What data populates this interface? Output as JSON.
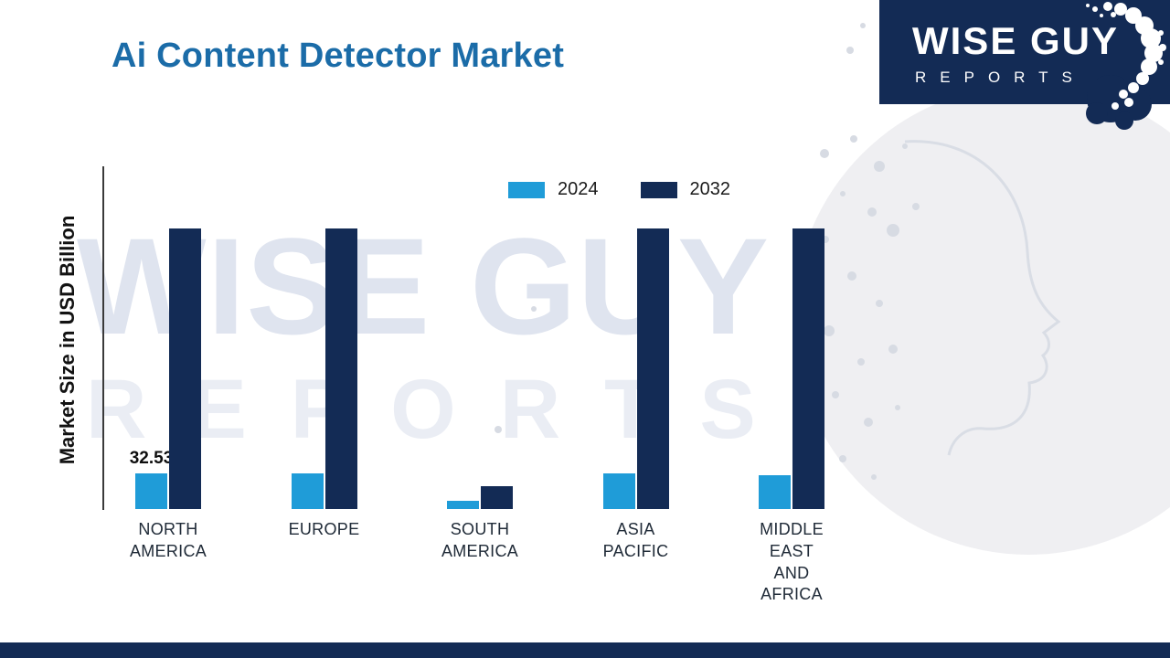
{
  "title": "Ai Content Detector Market",
  "ylabel": "Market Size in USD Billion",
  "colors": {
    "title_blue": "#1b6ca8",
    "navy": "#132b55",
    "bar_2024": "#1f9cd8",
    "bar_2032": "#132b55",
    "watermark": "#dfe4ef"
  },
  "watermark": {
    "line1": "WISE GUY",
    "line2": "REPORTS"
  },
  "logo": {
    "line1": "WISE GUY",
    "line2": "REPORTS"
  },
  "chart_data": {
    "type": "bar",
    "title": "Ai Content Detector Market",
    "xlabel": "",
    "ylabel": "Market Size in USD Billion",
    "grid": false,
    "legend_position": "top",
    "categories": [
      "NORTH AMERICA",
      "EUROPE",
      "SOUTH AMERICA",
      "ASIA PACIFIC",
      "MIDDLE EAST AND AFRICA"
    ],
    "series": [
      {
        "name": "2024",
        "color": "#1f9cd8",
        "values": [
          32.53,
          32.5,
          7.5,
          32.5,
          31
        ]
      },
      {
        "name": "2032",
        "color": "#132b55",
        "values": [
          256,
          256,
          21,
          256,
          256
        ]
      }
    ],
    "value_labels": [
      {
        "category": "NORTH AMERICA",
        "series": "2024",
        "text": "32.53"
      }
    ]
  }
}
